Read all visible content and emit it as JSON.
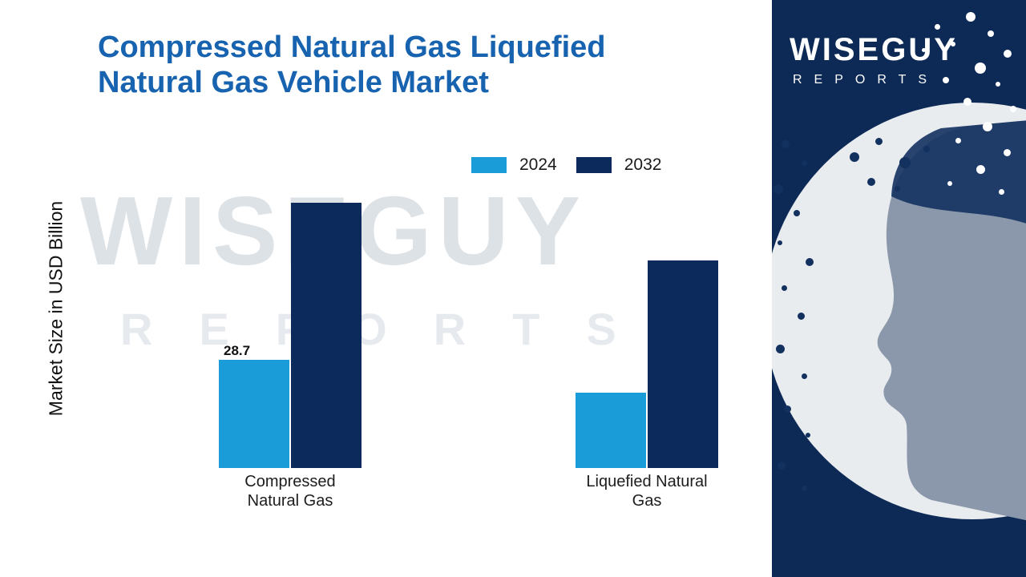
{
  "title": "Compressed Natural Gas Liquefied Natural Gas Vehicle Market",
  "y_axis_label": "Market Size in USD Billion",
  "watermark": {
    "line1": "WISEGUY",
    "line2": "REPORTS"
  },
  "brand": {
    "name": "WISEGUY",
    "sub": "REPORTS"
  },
  "colors": {
    "accent_blue": "#1a9cd8",
    "navy": "#0d2a56",
    "title_blue": "#1763af"
  },
  "chart_data": {
    "type": "bar",
    "title": "Compressed Natural Gas Liquefied Natural Gas Vehicle Market",
    "xlabel": "",
    "ylabel": "Market Size in USD Billion",
    "categories": [
      "Compressed Natural Gas",
      "Liquefied Natural Gas"
    ],
    "series": [
      {
        "name": "2024",
        "color": "#1a9cd8",
        "values": [
          28.7,
          20.1
        ]
      },
      {
        "name": "2032",
        "color": "#0d2a5c",
        "values": [
          70.5,
          55.2
        ]
      }
    ],
    "value_labels": [
      {
        "category": "Compressed Natural Gas",
        "series": "2024",
        "value": "28.7"
      }
    ],
    "ylim": [
      0,
      75
    ],
    "grid": false,
    "legend_position": "top"
  }
}
